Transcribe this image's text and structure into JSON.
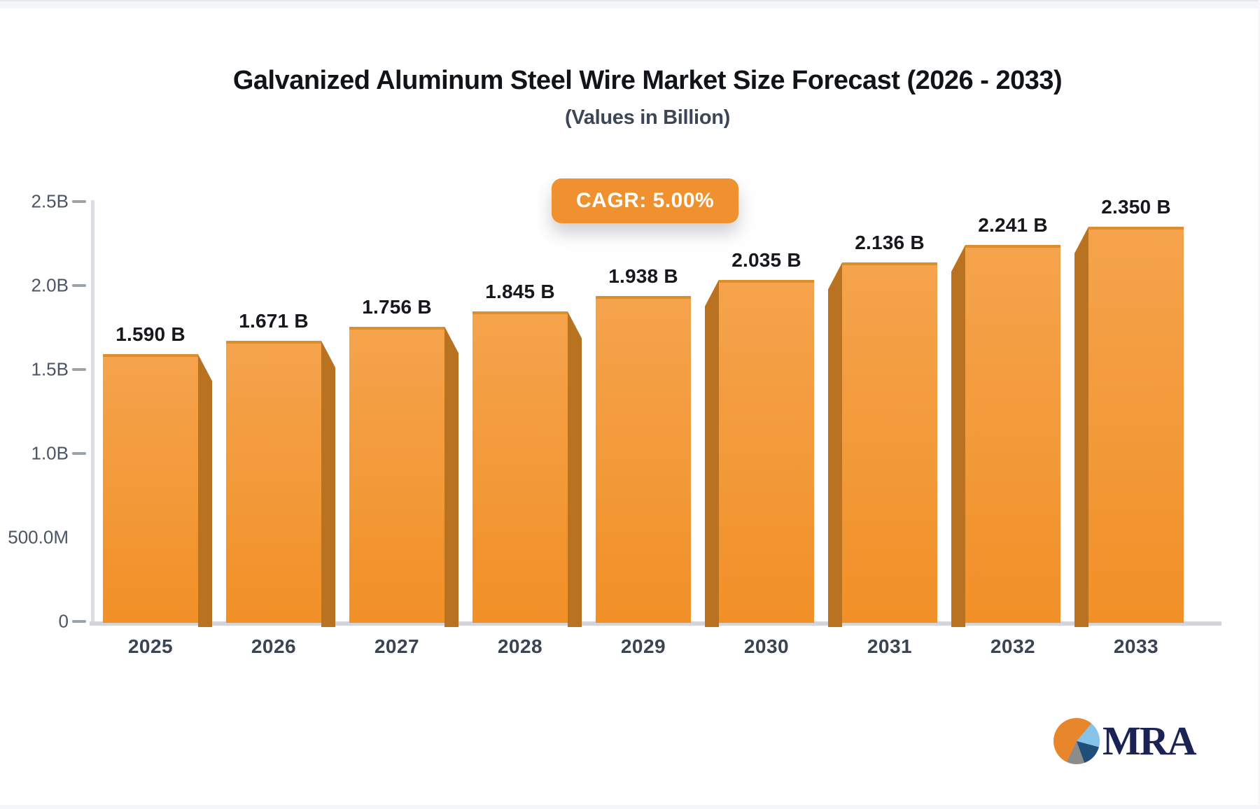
{
  "logo": {
    "wordmark": "MRA",
    "pie_icon_colors": [
      "#E8862B",
      "#85C3E8",
      "#1F4E79",
      "#8C8C8C"
    ]
  },
  "chart_data": {
    "type": "bar",
    "title": "Galvanized Aluminum Steel Wire Market Size Forecast (2026 - 2033)",
    "subtitle": "(Values in Billion)",
    "annotation": "CAGR: 5.00%",
    "categories": [
      "2025",
      "2026",
      "2027",
      "2028",
      "2029",
      "2030",
      "2031",
      "2032",
      "2033"
    ],
    "values": [
      1.59,
      1.671,
      1.756,
      1.845,
      1.938,
      2.035,
      2.136,
      2.241,
      2.35
    ],
    "value_labels": [
      "1.590 B",
      "1.671 B",
      "1.756 B",
      "1.845 B",
      "1.938 B",
      "2.035 B",
      "2.136 B",
      "2.241 B",
      "2.350 B"
    ],
    "unit": "B",
    "xlabel": "",
    "ylabel": "",
    "ylim": [
      0,
      2.5
    ],
    "grid": false,
    "legend": null,
    "y_ticks": [
      {
        "label": "0",
        "value": 0,
        "dash": true
      },
      {
        "label": "500.0M",
        "value": 0.5,
        "dash": false
      },
      {
        "label": "1.0B",
        "value": 1.0,
        "dash": true
      },
      {
        "label": "1.5B",
        "value": 1.5,
        "dash": true
      },
      {
        "label": "2.0B",
        "value": 2.0,
        "dash": true
      },
      {
        "label": "2.5B",
        "value": 2.5,
        "dash": true
      }
    ],
    "colors": {
      "badge_bg": "#F0912F",
      "badge_text": "#FFFFFF",
      "bar_gradient_top": "#F5A34C",
      "bar_gradient_bottom": "#F19027",
      "bar_side": "#B9721F",
      "bar_top_edge": "#DE8D2B",
      "axis": "#D3D5DA",
      "axis_light": "#DCDEE2",
      "dash": "#9AA2AC",
      "tick_text": "#4C5565",
      "category_text": "#3B4454",
      "label_text": "#16181D"
    }
  }
}
